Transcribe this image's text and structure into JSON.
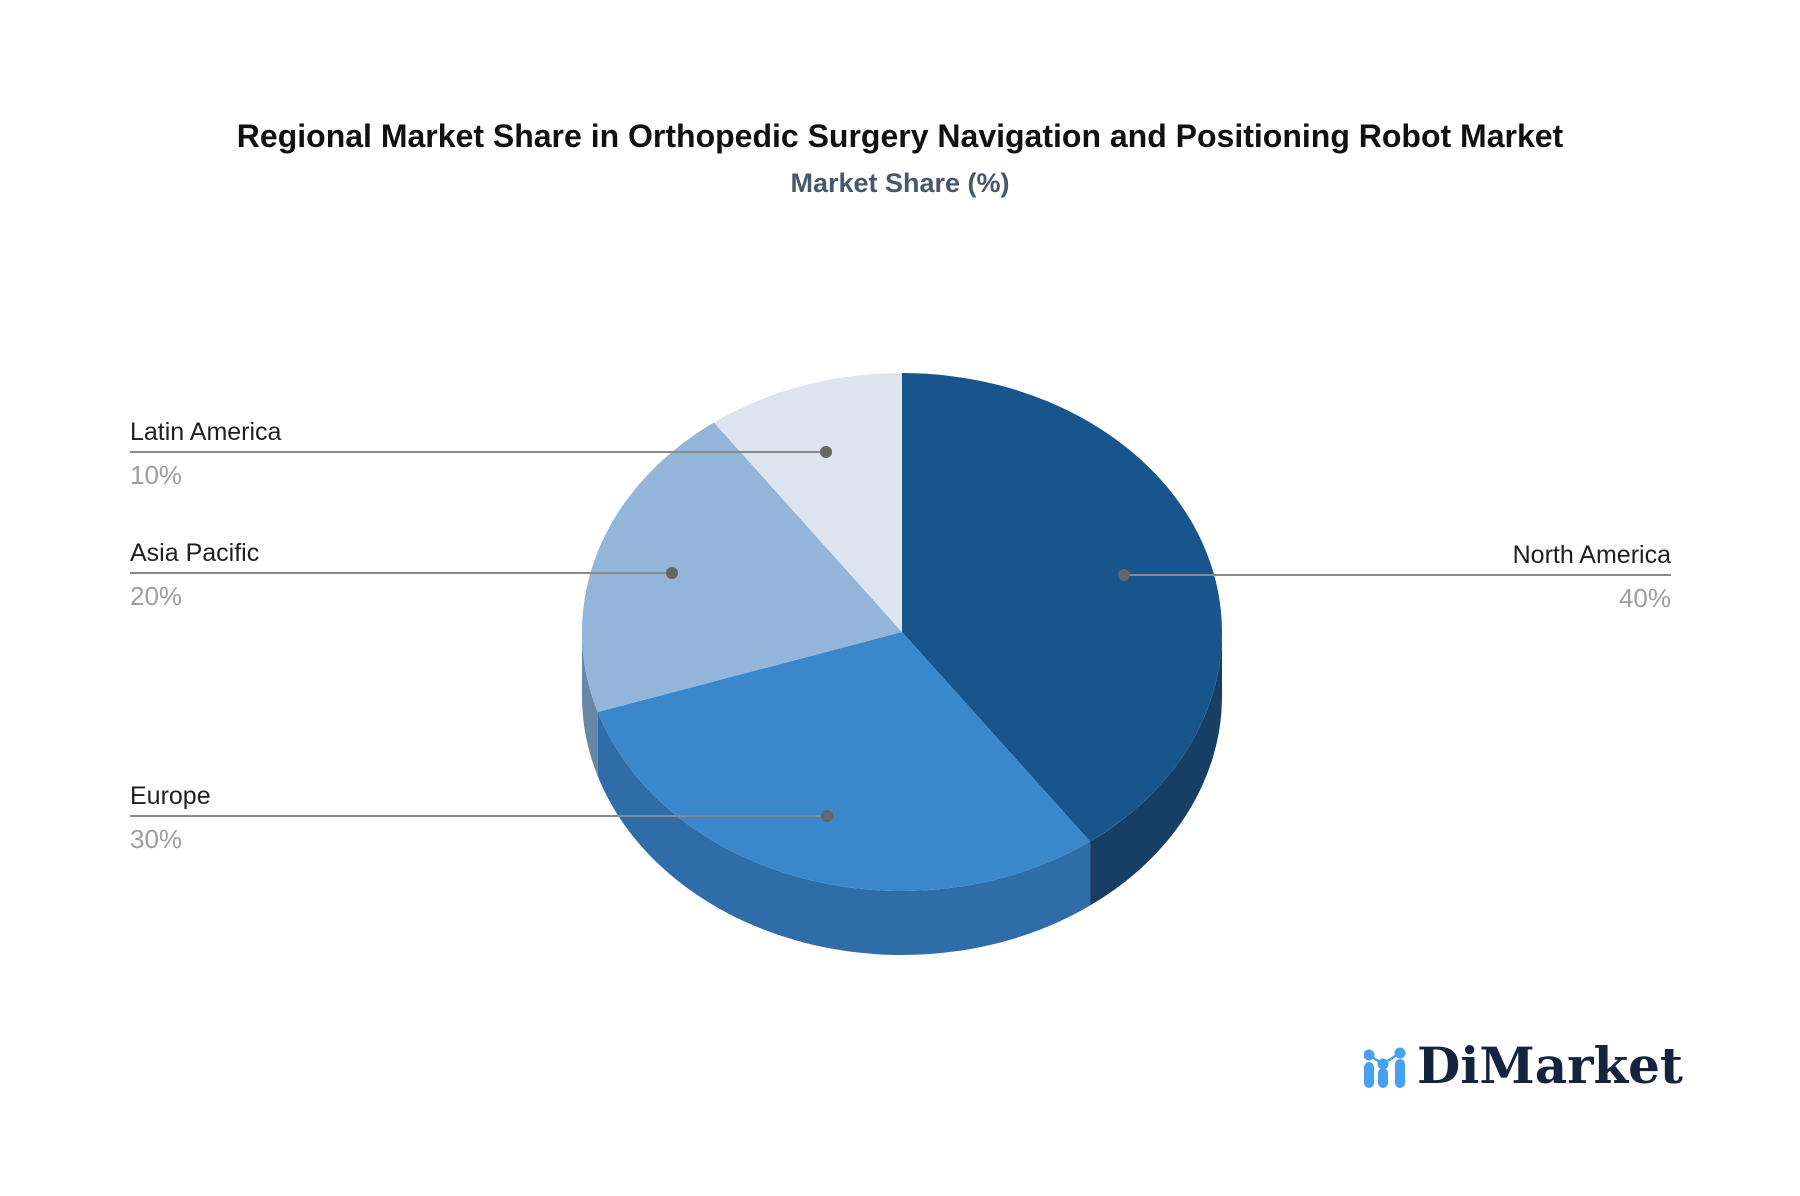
{
  "title": "Regional Market Share in Orthopedic Surgery Navigation and Positioning Robot Market",
  "subtitle": "Market Share (%)",
  "chart_data": {
    "type": "pie",
    "style": "3d",
    "title": "Regional Market Share in Orthopedic Surgery Navigation and Positioning Robot Market",
    "subtitle": "Market Share (%)",
    "unit": "%",
    "start_angle_deg": 90,
    "direction": "clockwise",
    "legend": "none",
    "slices": [
      {
        "label": "North America",
        "value": 40,
        "display": "40%",
        "color": "#19558d",
        "side_color": "#173f66"
      },
      {
        "label": "Europe",
        "value": 30,
        "display": "30%",
        "color": "#3a87cc",
        "side_color": "#2e6da7"
      },
      {
        "label": "Asia Pacific",
        "value": 20,
        "display": "20%",
        "color": "#92b5d9",
        "side_color": "#6787a5"
      },
      {
        "label": "Latin America",
        "value": 10,
        "display": "10%",
        "color": "#dde4ef"
      }
    ]
  },
  "logo": {
    "text": "DiMarket",
    "icon": "bar-line-chart-icon",
    "text_color": "#15233f",
    "bar_color": "#4aa0f0"
  },
  "colors": {
    "leader_line": "#8a8a8a",
    "leader_dot": "#666666",
    "label_text": "#1f1f1f",
    "value_text": "#9e9e9e",
    "title": "#111111",
    "subtitle": "#46586a",
    "background": "#ffffff"
  }
}
